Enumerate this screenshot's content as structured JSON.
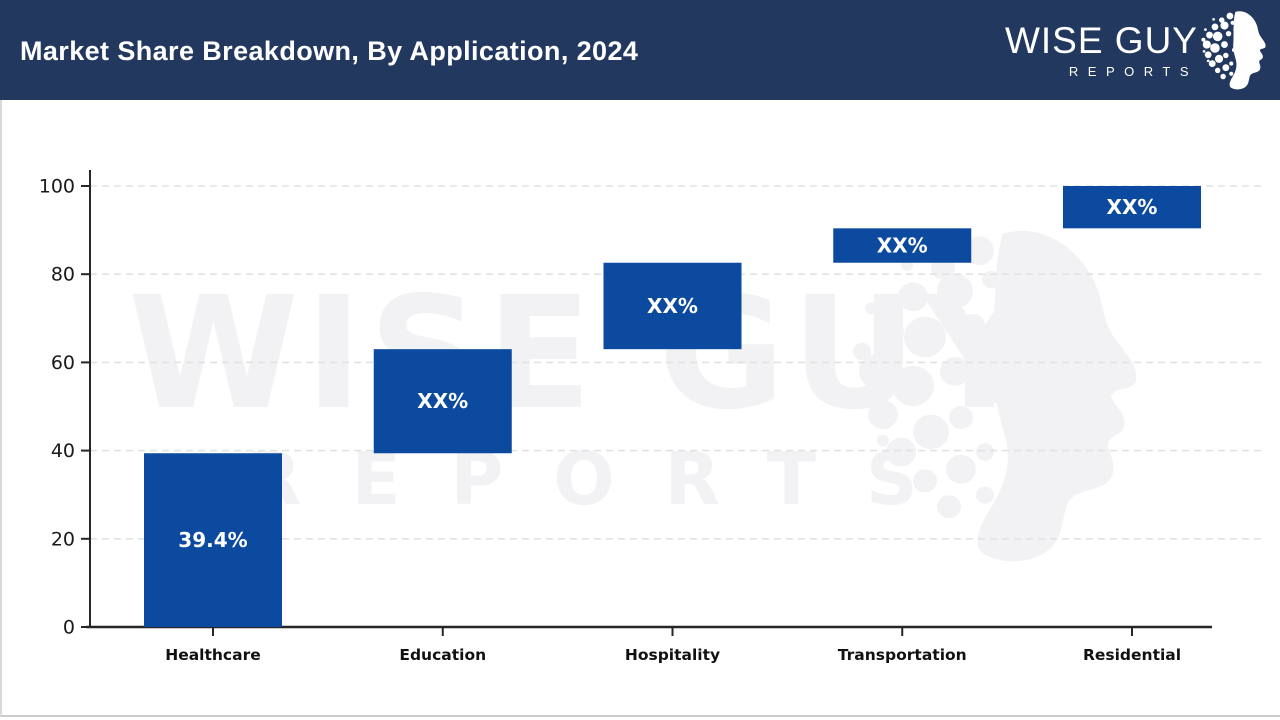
{
  "header": {
    "title": "Market Share Breakdown, By Application, 2024",
    "logo": {
      "line1": "WISE GUY",
      "line2": "REPORTS"
    }
  },
  "watermark": {
    "line1": "WISE GUY",
    "line2": "REPORTS"
  },
  "colors": {
    "header_bg": "#22385f",
    "bar": "#0b4a9e",
    "grid": "#e2e2e2",
    "axis": "#262626",
    "tick_label": "#1a1a1a",
    "value_label": "#ffffff",
    "watermark": "#f2f2f4"
  },
  "chart_data": {
    "type": "bar",
    "subtype": "waterfall",
    "title": "Market Share Breakdown, By Application, 2024",
    "categories": [
      "Healthcare",
      "Education",
      "Hospitality",
      "Transportation",
      "Residential"
    ],
    "segments": [
      {
        "category": "Healthcare",
        "start": 0,
        "end": 39.4,
        "label": "39.4%"
      },
      {
        "category": "Education",
        "start": 39.4,
        "end": 63.0,
        "label": "XX%"
      },
      {
        "category": "Hospitality",
        "start": 63.0,
        "end": 82.6,
        "label": "XX%"
      },
      {
        "category": "Transportation",
        "start": 82.6,
        "end": 90.4,
        "label": "XX%"
      },
      {
        "category": "Residential",
        "start": 90.4,
        "end": 100.0,
        "label": "XX%"
      }
    ],
    "yticks": [
      0,
      20,
      40,
      60,
      80,
      100
    ],
    "ylim": [
      0,
      104
    ],
    "xlabel": "",
    "ylabel": "",
    "grid": "horizontal-dashed",
    "legend": "none",
    "bar_color": "#0b4a9e",
    "value_label_color": "#ffffff"
  }
}
